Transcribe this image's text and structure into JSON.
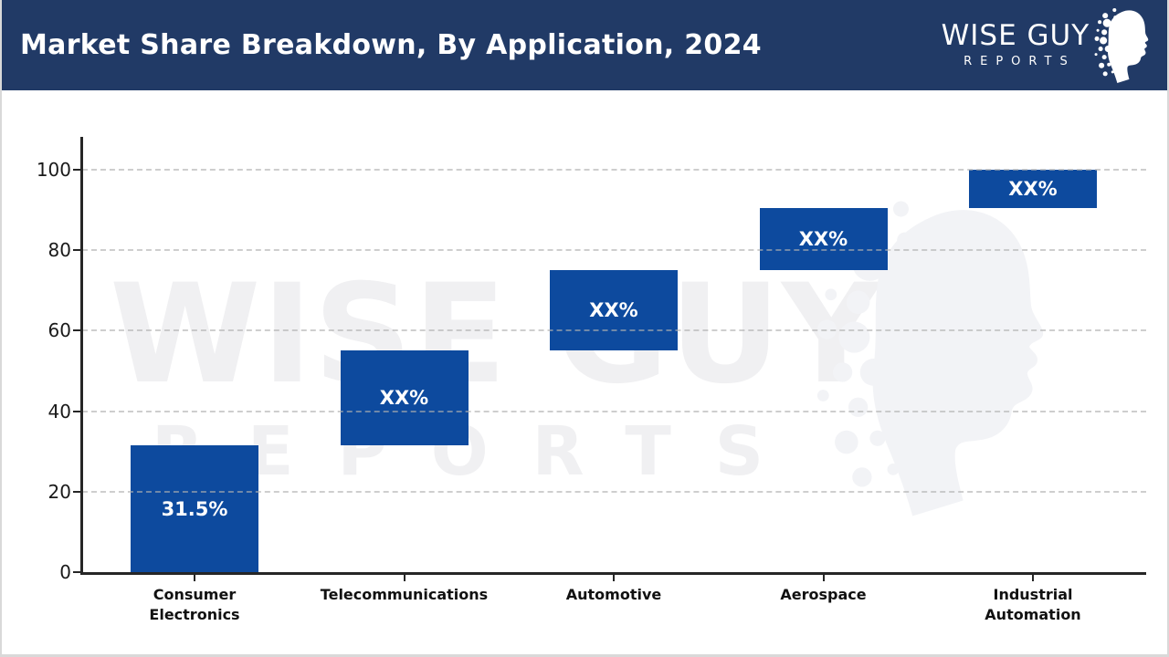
{
  "header": {
    "title": "Market Share Breakdown, By Application, 2024",
    "logo": {
      "line1": "WISE GUY",
      "line2": "REPORTS"
    }
  },
  "watermark": {
    "line1": "WISE GUY",
    "line2": "REPORTS"
  },
  "chart_data": {
    "type": "bar",
    "subtype": "floating-waterfall",
    "title": "Market Share Breakdown, By Application, 2024",
    "xlabel": "",
    "ylabel": "",
    "ylim": [
      0,
      100
    ],
    "yticks": [
      0,
      20,
      40,
      60,
      80,
      100
    ],
    "grid": true,
    "legend": false,
    "categories": [
      "Consumer Electronics",
      "Telecommunications",
      "Automotive",
      "Aerospace",
      "Industrial Automation"
    ],
    "category_tick_lines": [
      [
        "Consumer",
        "Electronics"
      ],
      [
        "Telecommunications"
      ],
      [
        "Automotive"
      ],
      [
        "Aerospace"
      ],
      [
        "Industrial",
        "Automation"
      ]
    ],
    "segments": [
      {
        "label": "31.5%",
        "start": 0,
        "end": 31.5
      },
      {
        "label": "XX%",
        "start": 31.5,
        "end": 55
      },
      {
        "label": "XX%",
        "start": 55,
        "end": 75
      },
      {
        "label": "XX%",
        "start": 75,
        "end": 90.5
      },
      {
        "label": "XX%",
        "start": 90.5,
        "end": 100
      }
    ]
  },
  "colors": {
    "header_bg": "#213a66",
    "bar": "#0d4a9e",
    "bar_label_text": "#ffffff",
    "axis": "#262626",
    "grid": "#b0b0b0",
    "watermark": "#f0f0f2"
  }
}
